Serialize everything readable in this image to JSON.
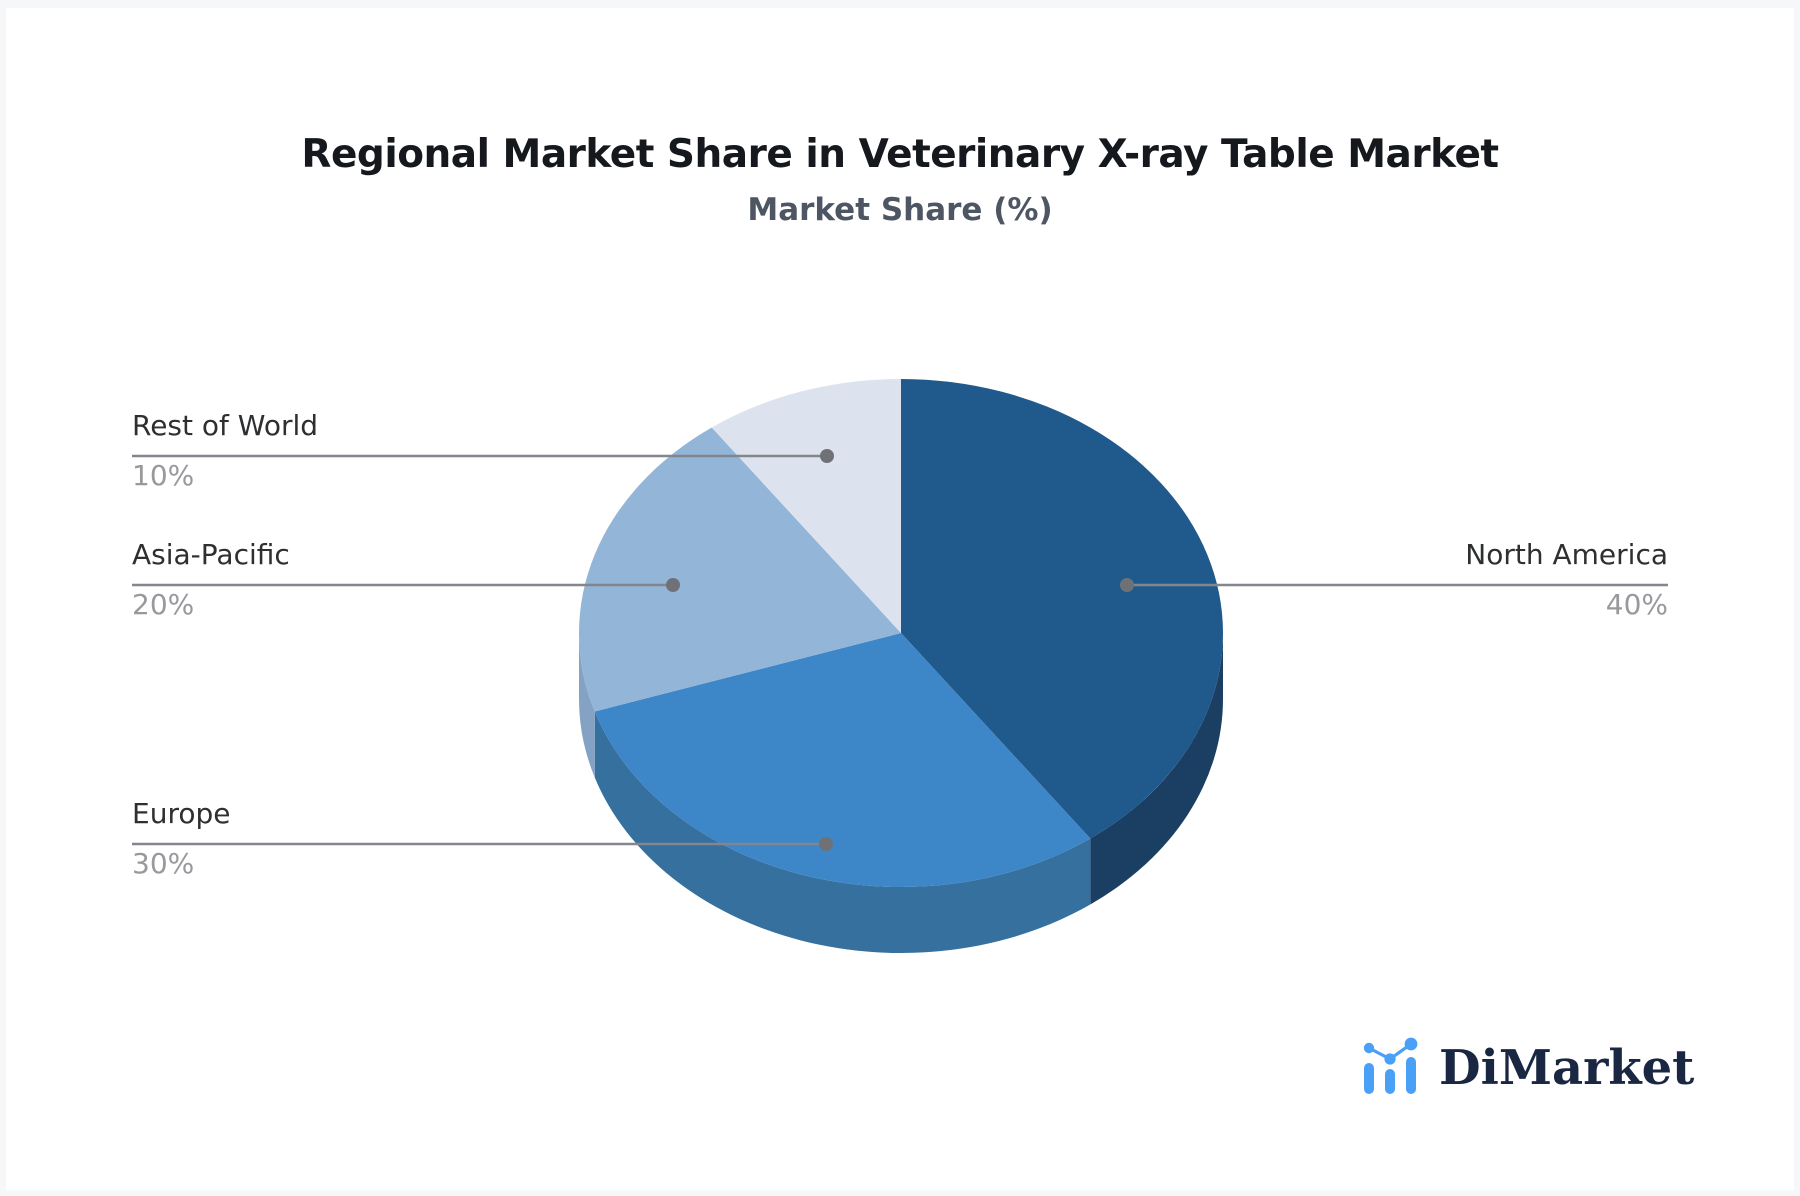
{
  "page": {
    "background": "#f6f7f9",
    "canvas": "#ffffff"
  },
  "chart_data": {
    "type": "pie",
    "style": "3d",
    "title": "Regional Market Share in Veterinary X-ray Table Market",
    "subtitle": "Market Share (%)",
    "unit": "%",
    "start_angle": "12-oclock",
    "direction": "clockwise",
    "legend": "none (leader-line callouts)",
    "slices": [
      {
        "label": "North America",
        "value": 40,
        "percent_label": "40%",
        "color": "#20598b",
        "side_color": "#1b3f63"
      },
      {
        "label": "Europe",
        "value": 30,
        "percent_label": "30%",
        "color": "#3d86c8",
        "side_color": "#35709f"
      },
      {
        "label": "Asia-Pacific",
        "value": 20,
        "percent_label": "20%",
        "color": "#93b5d8",
        "side_color": "#84a3c4"
      },
      {
        "label": "Rest of World",
        "value": 10,
        "percent_label": "10%",
        "color": "#dce3ee"
      }
    ],
    "callout_line_color": "#83868c",
    "callout_dot_color": "#6e7277",
    "label_color": "#2d2f31",
    "percent_color": "#97999c"
  },
  "branding": {
    "name": "DiMarket",
    "icon": "bar-chart-trend-icon",
    "icon_color": "#4aa0f6",
    "text_color": "#1a2742"
  }
}
